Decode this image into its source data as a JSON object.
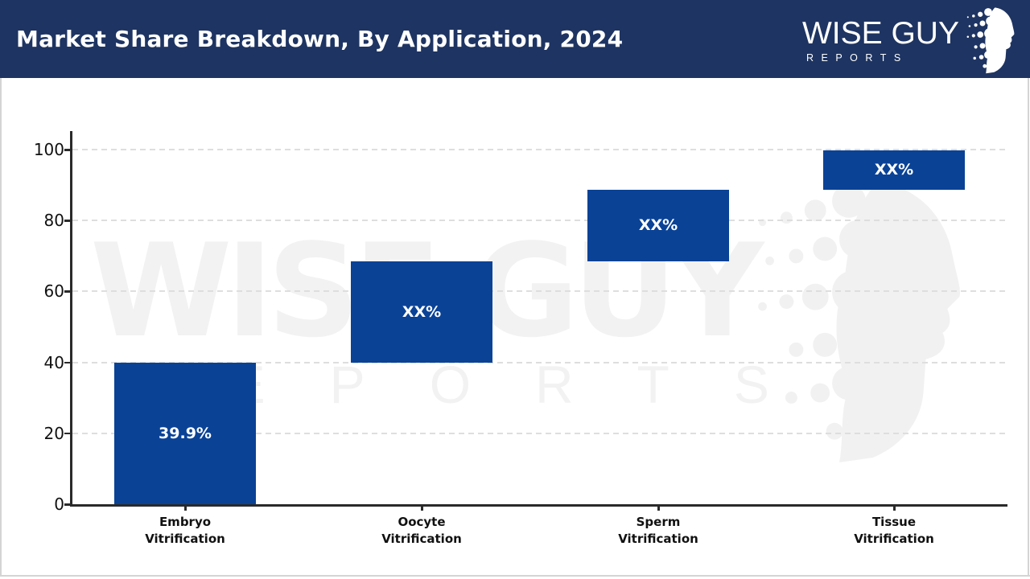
{
  "header": {
    "title": "Market Share Breakdown, By Application, 2024",
    "logo": {
      "primary": "WISE GUY",
      "secondary": "REPORTS"
    }
  },
  "watermark": {
    "line1": "WISE GUY",
    "line2": "REPORTS"
  },
  "chart_data": {
    "type": "bar",
    "subtype": "waterfall-floating-bars",
    "title": "Market Share Breakdown, By Application, 2024",
    "categories": [
      "Embryo Vitrification",
      "Oocyte Vitrification",
      "Sperm Vitrification",
      "Tissue Vitrification"
    ],
    "segments": [
      {
        "category": "Embryo Vitrification",
        "start": 0,
        "end": 39.9,
        "label": "39.9%"
      },
      {
        "category": "Oocyte Vitrification",
        "start": 39.9,
        "end": 68.5,
        "label": "XX%"
      },
      {
        "category": "Sperm Vitrification",
        "start": 68.5,
        "end": 88.7,
        "label": "XX%"
      },
      {
        "category": "Tissue Vitrification",
        "start": 88.7,
        "end": 99.8,
        "label": "XX%"
      }
    ],
    "yticks": [
      0,
      20,
      40,
      60,
      80,
      100
    ],
    "ylim": [
      0,
      100
    ],
    "grid": "dashed-horizontal",
    "legend": "none",
    "bar_color": "#0a4296",
    "value_label_color": "#ffffff",
    "axis_color": "#2a2a2a",
    "grid_color": "#dedede",
    "header_bg_color": "#1e3462",
    "watermark_color": "#f2f2f2"
  }
}
